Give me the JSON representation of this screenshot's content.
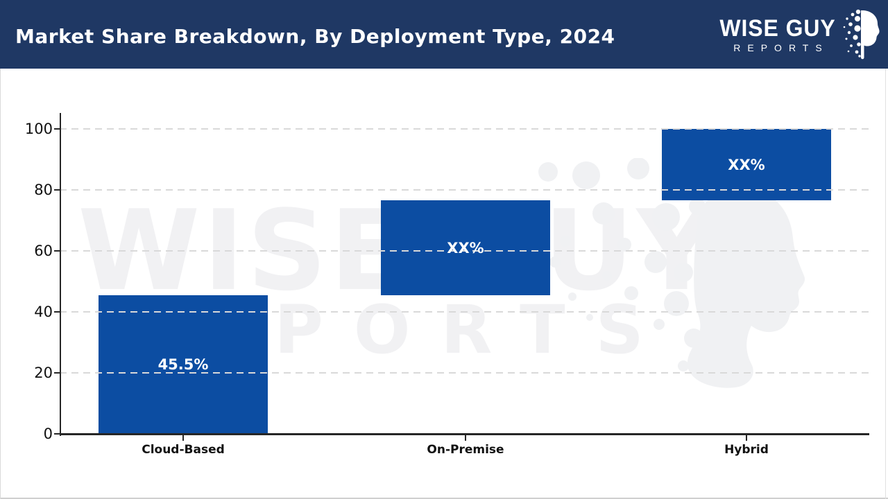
{
  "header": {
    "title": "Market Share Breakdown, By Deployment Type, 2024",
    "bg_color": "#1F3864",
    "text_color": "#FFFFFF"
  },
  "brand": {
    "name": "WISE GUY",
    "subname": "REPORTS"
  },
  "chart_data": {
    "type": "bar",
    "variant": "waterfall",
    "title": "Market Share Breakdown, By Deployment Type, 2024",
    "categories": [
      "Cloud-Based",
      "On-Premise",
      "Hybrid"
    ],
    "segments": [
      {
        "category": "Cloud-Based",
        "start": 0,
        "end": 45.5,
        "label": "45.5%"
      },
      {
        "category": "On-Premise",
        "start": 45.5,
        "end": 76.5,
        "label": "XX%"
      },
      {
        "category": "Hybrid",
        "start": 76.5,
        "end": 100,
        "label": "XX%"
      }
    ],
    "ylim": [
      0,
      100
    ],
    "y_ticks": [
      0,
      20,
      40,
      60,
      80,
      100
    ],
    "xlabel": "",
    "ylabel": "",
    "grid": "horizontal-dashed",
    "grid_above_bars": true,
    "legend_position": "none",
    "bar_color": "#0C4DA2",
    "bar_label_color": "#FFFFFF",
    "axis_color": "#262626",
    "grid_color": "#D9D9D9",
    "tick_label_color": "#111111",
    "watermark_text": "WISE GUY REPORTS"
  }
}
